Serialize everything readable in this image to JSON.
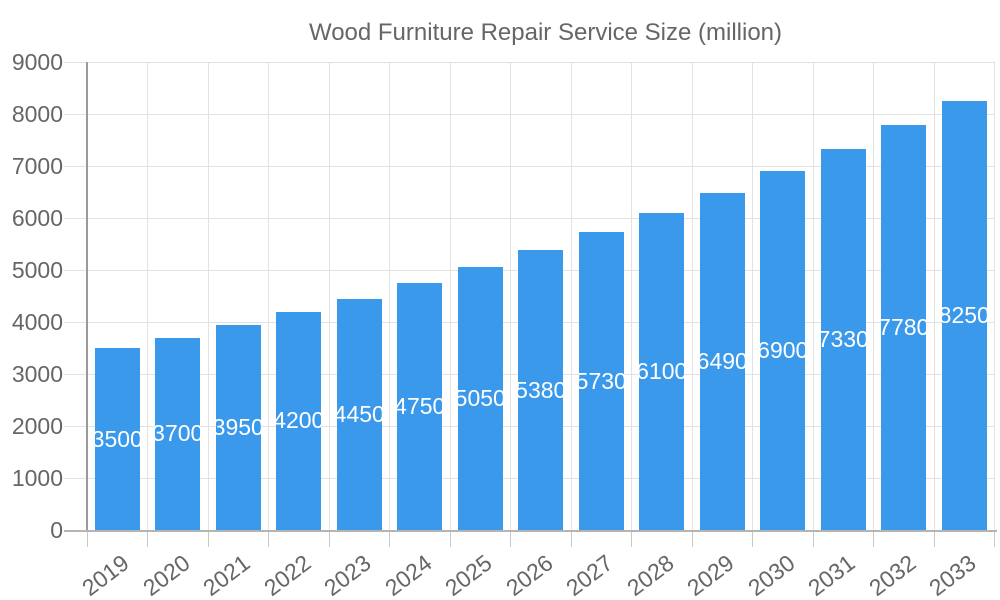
{
  "legend": {
    "label": "Wood Furniture Repair Service Size (million)"
  },
  "colors": {
    "bar": "#3b99ec",
    "axis_text": "#666666",
    "grid": "#e2e2e2",
    "y_axis_line": "#9a9a9a",
    "x_axis_line": "#b4b4b4",
    "value_label": "#ffffff"
  },
  "chart_data": {
    "type": "bar",
    "title": "Wood Furniture Repair Service Size (million)",
    "categories": [
      "2019",
      "2020",
      "2021",
      "2022",
      "2023",
      "2024",
      "2025",
      "2026",
      "2027",
      "2028",
      "2029",
      "2030",
      "2031",
      "2032",
      "2033"
    ],
    "series": [
      {
        "name": "Wood Furniture Repair Service Size (million)",
        "values": [
          3500,
          3700,
          3950,
          4200,
          4450,
          4750,
          5050,
          5380,
          5730,
          6100,
          6490,
          6900,
          7330,
          7780,
          8250
        ]
      }
    ],
    "xlabel": "",
    "ylabel": "",
    "ylim": [
      0,
      9000
    ],
    "ytick_step": 1000,
    "ytick_labels": [
      "0",
      "1000",
      "2000",
      "3000",
      "4000",
      "5000",
      "6000",
      "7000",
      "8000",
      "9000"
    ],
    "grid": true,
    "legend_position": "top",
    "value_label_position": "inside-center",
    "value_label_color": "#ffffff",
    "x_tick_rotation_deg": -37
  }
}
